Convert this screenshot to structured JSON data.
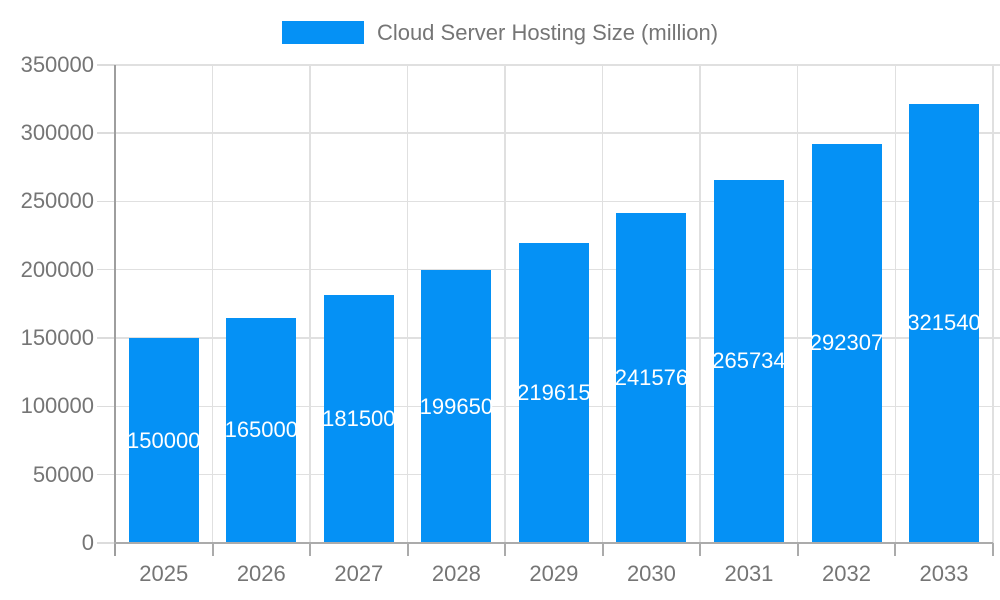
{
  "chart_data": {
    "type": "bar",
    "title": "Cloud Server Hosting Size (million)",
    "categories": [
      "2025",
      "2026",
      "2027",
      "2028",
      "2029",
      "2030",
      "2031",
      "2032",
      "2033"
    ],
    "values": [
      150000,
      165000,
      181500,
      199650,
      219615,
      241576,
      265734,
      292307,
      321540
    ],
    "bar_labels": [
      "150000",
      "165000",
      "181500",
      "199650",
      "219615",
      "241576",
      "265734",
      "292307",
      "321540"
    ],
    "series": [
      {
        "name": "Cloud Server Hosting Size (million)",
        "values": [
          150000,
          165000,
          181500,
          199650,
          219615,
          241576,
          265734,
          292307,
          321540
        ]
      }
    ],
    "xlabel": "",
    "ylabel": "",
    "ylim": [
      0,
      350000
    ],
    "yticks": [
      0,
      50000,
      100000,
      150000,
      200000,
      250000,
      300000,
      350000
    ],
    "ytick_labels": [
      "0",
      "50000",
      "100000",
      "150000",
      "200000",
      "250000",
      "300000",
      "350000"
    ],
    "grid": "on",
    "legend_position": "top-center"
  },
  "legend": {
    "label": "Cloud Server Hosting Size (million)"
  },
  "colors": {
    "bar": "#0591F5",
    "bar_value_text": "#FFFFFF",
    "axis_text": "#757575",
    "gridline": "#E0E0E0",
    "y_axis_line": "#9E9E9E",
    "x_axis_line": "#ABABAB",
    "y_tick": "#DCDCDC",
    "x_tick": "#ABABAB",
    "background": "#FFFFFF"
  }
}
